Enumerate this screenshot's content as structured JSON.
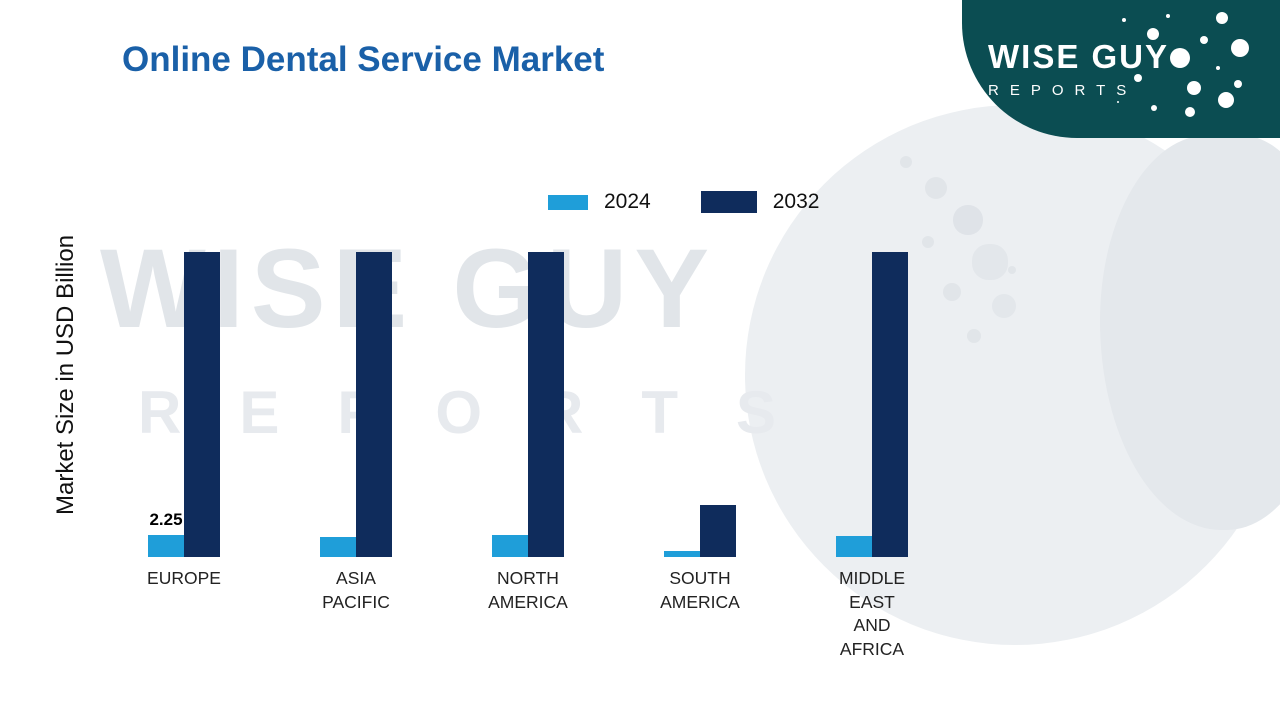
{
  "header": {
    "title": "Online Dental Service Market"
  },
  "logo": {
    "line1": "WISE GUY",
    "line2": "REPORTS"
  },
  "watermark": {
    "line1": "WISE GUY",
    "line2": "REPORTS"
  },
  "chart_data": {
    "type": "bar",
    "title": "Online Dental Service Market",
    "ylabel": "Market Size in USD Billion",
    "xlabel": "",
    "categories": [
      "EUROPE",
      "ASIA PACIFIC",
      "NORTH AMERICA",
      "SOUTH AMERICA",
      "MIDDLE EAST AND AFRICA"
    ],
    "categories_display": [
      "EUROPE",
      "ASIA\nPACIFIC",
      "NORTH\nAMERICA",
      "SOUTH\nAMERICA",
      "MIDDLE\nEAST\nAND\nAFRICA"
    ],
    "series": [
      {
        "name": "2024",
        "color": "#1f9ed9",
        "values": [
          2.25,
          2.0,
          2.2,
          0.6,
          2.1
        ]
      },
      {
        "name": "2032",
        "color": "#0f2c5c",
        "values": [
          31,
          31,
          31,
          5.3,
          31
        ]
      }
    ],
    "ylim": [
      0,
      31
    ],
    "grid": false,
    "legend_position": "top",
    "data_labels": [
      {
        "series": "2024",
        "category": "EUROPE",
        "text": "2.25"
      }
    ]
  }
}
